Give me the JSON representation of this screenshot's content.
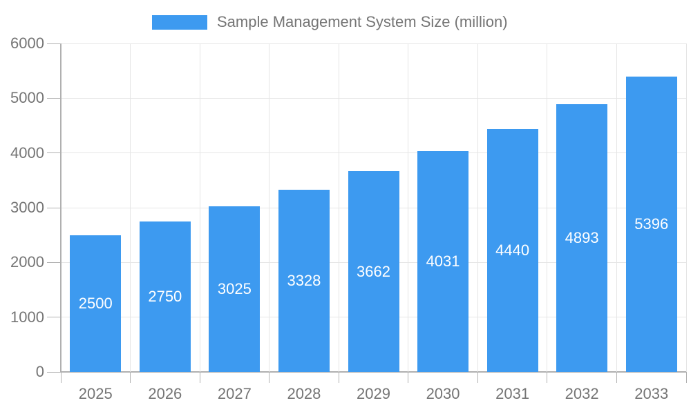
{
  "chart_data": {
    "type": "bar",
    "title": "Sample Management System Size (million)",
    "legend": {
      "position": "top",
      "label": "Sample Management System Size (million)"
    },
    "categories": [
      "2025",
      "2026",
      "2027",
      "2028",
      "2029",
      "2030",
      "2031",
      "2032",
      "2033"
    ],
    "values": [
      2500,
      2750,
      3025,
      3328,
      3662,
      4031,
      4440,
      4893,
      5396
    ],
    "value_labels": [
      "2500",
      "2750",
      "3025",
      "3328",
      "3662",
      "4031",
      "4440",
      "4893",
      "5396"
    ],
    "xlabel": "",
    "ylabel": "",
    "ylim": [
      0,
      6000
    ],
    "yticks": [
      0,
      1000,
      2000,
      3000,
      4000,
      5000,
      6000
    ],
    "ytick_labels": [
      "0",
      "1000",
      "2000",
      "3000",
      "4000",
      "5000",
      "6000"
    ],
    "grid": true,
    "legend_position": "top-center",
    "colors": {
      "bar": "#3D9AF0",
      "axis": "#b0b0b0",
      "gridline": "#e5e5e5",
      "tick_label": "#757575",
      "title": "#757575",
      "value_label": "#ffffff",
      "background": "#ffffff"
    }
  }
}
